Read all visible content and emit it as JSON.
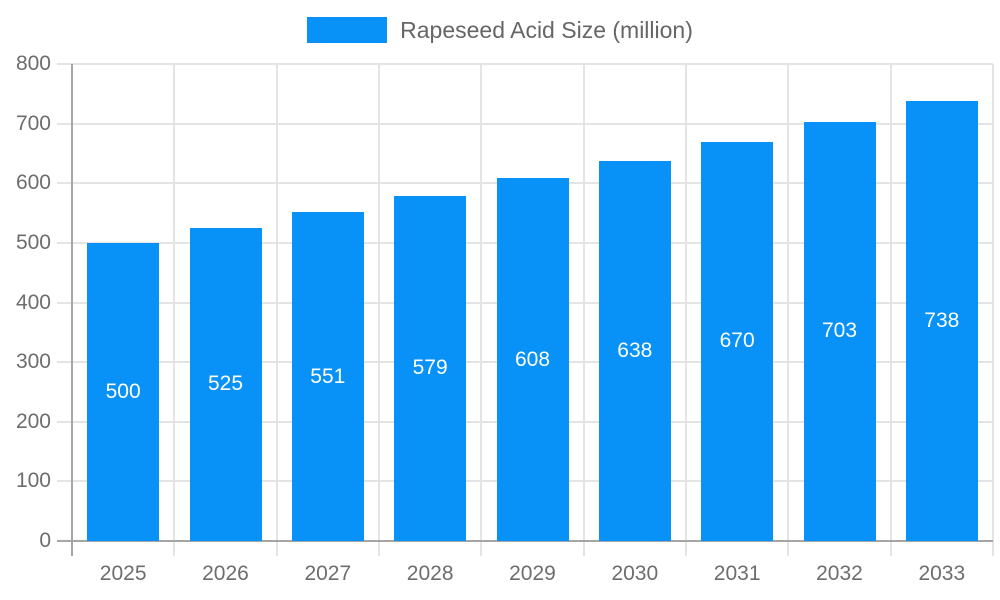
{
  "legend": {
    "label": "Rapeseed Acid Size (million)"
  },
  "colors": {
    "bar": "#0892f7",
    "grid": "#e4e4e4",
    "axis": "#a6a6a6",
    "axis_text": "#6d6d6d",
    "legend_text": "#666666",
    "value_text": "#ffffff",
    "background": "#ffffff"
  },
  "chart_data": {
    "type": "bar",
    "title": "Rapeseed Acid Size (million)",
    "series_name": "Rapeseed Acid Size (million)",
    "categories": [
      "2025",
      "2026",
      "2027",
      "2028",
      "2029",
      "2030",
      "2031",
      "2032",
      "2033"
    ],
    "values": [
      500,
      525,
      551,
      579,
      608,
      638,
      670,
      703,
      738
    ],
    "xlabel": "",
    "ylabel": "",
    "ylim": [
      0,
      800
    ],
    "ytick_step": 100,
    "ytick_labels": [
      "0",
      "100",
      "200",
      "300",
      "400",
      "500",
      "600",
      "700",
      "800"
    ],
    "grid": true,
    "legend_position": "top-center",
    "value_label_position": "inside-center",
    "bar_color": "#0892f7"
  }
}
